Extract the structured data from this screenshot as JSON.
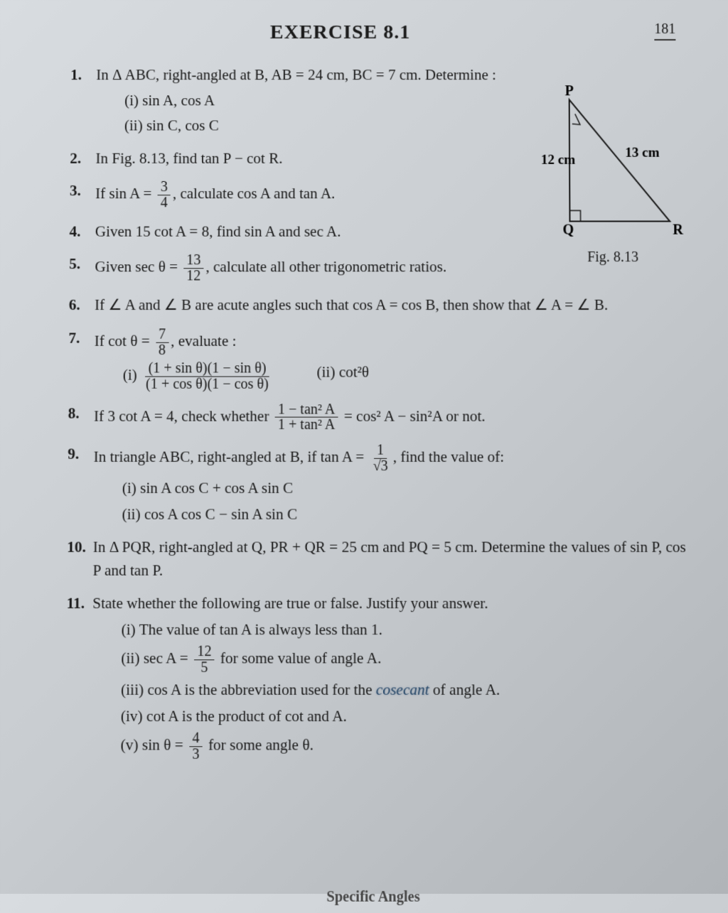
{
  "page_number": "181",
  "exercise_title": "EXERCISE 8.1",
  "figure": {
    "caption": "Fig. 8.13",
    "vertices": {
      "P": "P",
      "Q": "Q",
      "R": "R"
    },
    "side_pq": "12 cm",
    "side_pr": "13 cm",
    "stroke": "#1a1a1a",
    "fill": "none"
  },
  "problems": [
    {
      "n": "1.",
      "text": "In Δ ABC, right-angled at B, AB = 24 cm, BC = 7 cm. Determine :",
      "subs": [
        {
          "k": "(i)",
          "t": "sin A, cos A"
        },
        {
          "k": "(ii)",
          "t": "sin C, cos C"
        }
      ]
    },
    {
      "n": "2.",
      "text": "In Fig. 8.13, find tan P − cot R."
    },
    {
      "n": "3.",
      "pre": "If sin A = ",
      "frac": {
        "n": "3",
        "d": "4"
      },
      "post": ", calculate cos A and tan A."
    },
    {
      "n": "4.",
      "text": "Given 15 cot A = 8, find sin A and sec A."
    },
    {
      "n": "5.",
      "pre": "Given sec θ = ",
      "frac": {
        "n": "13",
        "d": "12"
      },
      "post": ", calculate all other trigonometric ratios."
    },
    {
      "n": "6.",
      "text": "If ∠ A and ∠ B are acute angles such that cos A = cos B, then show that ∠ A = ∠ B."
    },
    {
      "n": "7.",
      "pre": "If cot θ = ",
      "frac": {
        "n": "7",
        "d": "8"
      },
      "post": ", evaluate :",
      "subs_row": [
        {
          "k": "(i)",
          "frac": {
            "n": "(1 + sin θ)(1 − sin θ)",
            "d": "(1 + cos θ)(1 − cos θ)"
          }
        },
        {
          "k": "(ii)",
          "t": "cot²θ"
        }
      ]
    },
    {
      "n": "8.",
      "pre": "If 3 cot A = 4, check whether ",
      "frac": {
        "n": "1 − tan² A",
        "d": "1 + tan² A"
      },
      "post": " = cos² A − sin²A or not."
    },
    {
      "n": "9.",
      "pre": "In triangle ABC, right-angled at B, if tan A = ",
      "frac": {
        "n": "1",
        "d": "√3"
      },
      "post": ", find the value of:",
      "subs": [
        {
          "k": "(i)",
          "t": "sin A cos C + cos A sin C"
        },
        {
          "k": "(ii)",
          "t": "cos A cos C − sin A sin C"
        }
      ]
    },
    {
      "n": "10.",
      "text": "In Δ PQR, right-angled at Q, PR + QR = 25 cm and PQ = 5 cm. Determine the values of sin P, cos P and tan P."
    },
    {
      "n": "11.",
      "text": "State whether the following are true or false. Justify your answer.",
      "subs": [
        {
          "k": "(i)",
          "t": "The value of tan A is always less than 1."
        },
        {
          "k": "(ii)",
          "pre": "sec A = ",
          "frac": {
            "n": "12",
            "d": "5"
          },
          "post": " for some value of angle A."
        },
        {
          "k": "(iii)",
          "html": "cos A is the abbreviation used for the <span class='smudge'>cosecant</span> of angle A."
        },
        {
          "k": "(iv)",
          "t": "cot A is the product of cot and A."
        },
        {
          "k": "(v)",
          "pre": "sin θ = ",
          "frac": {
            "n": "4",
            "d": "3"
          },
          "post": " for some angle θ."
        }
      ]
    }
  ],
  "footer": "Specific Angles"
}
